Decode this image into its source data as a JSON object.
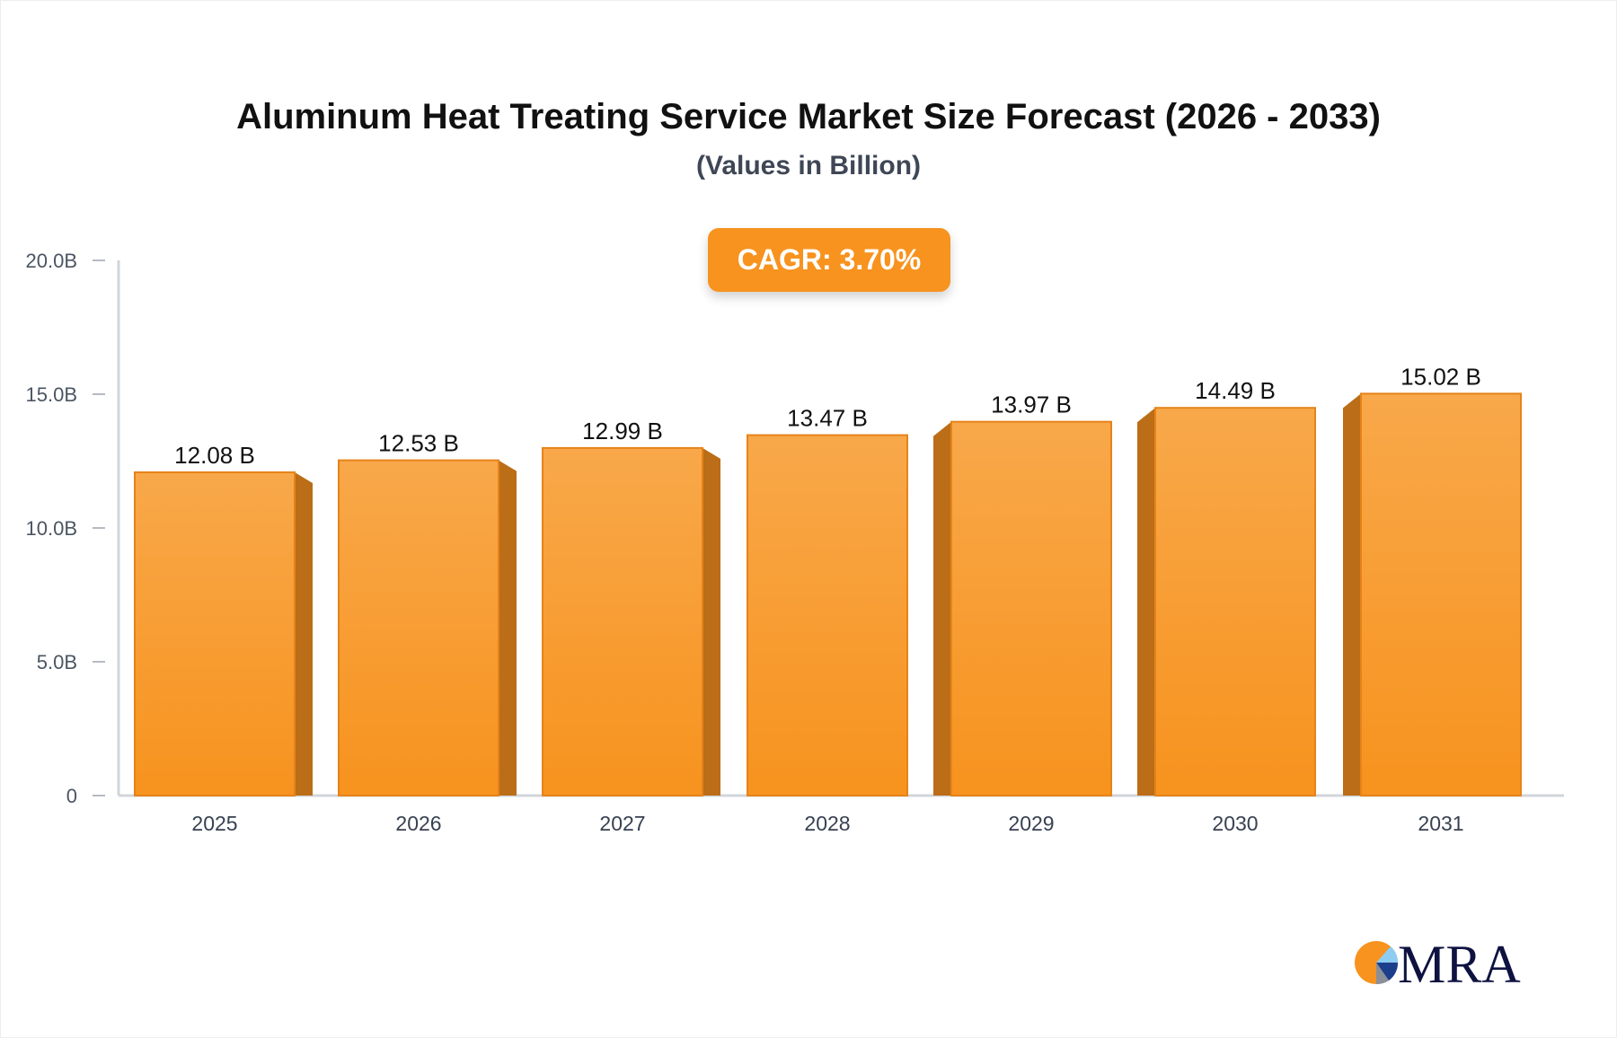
{
  "chart_data": {
    "type": "bar",
    "title": "Aluminum Heat Treating Service Market Size Forecast (2026 - 2033)",
    "subtitle": "(Values in Billion)",
    "annotation": "CAGR: 3.70%",
    "categories": [
      "2025",
      "2026",
      "2027",
      "2028",
      "2029",
      "2030",
      "2031"
    ],
    "values": [
      12.08,
      12.53,
      12.99,
      13.47,
      13.97,
      14.49,
      15.02
    ],
    "data_labels": [
      "12.08 B",
      "12.53 B",
      "12.99 B",
      "13.47 B",
      "13.97 B",
      "14.49 B",
      "15.02 B"
    ],
    "y_ticks": [
      0,
      5,
      10,
      15,
      20
    ],
    "y_tick_labels": [
      "0",
      "5.0B",
      "10.0B",
      "15.0B",
      "20.0B"
    ],
    "ylim": [
      0,
      20
    ],
    "xlabel": "",
    "ylabel": "",
    "grid": false,
    "colors": {
      "bar_top": "#f8a84a",
      "bar_bottom": "#f7931e",
      "bar_side": "#bb6d17",
      "bar_edge": "#e6831a",
      "axis": "#d1d5db",
      "tick_text": "#4b5563"
    }
  },
  "logo": {
    "text": "MRA"
  }
}
